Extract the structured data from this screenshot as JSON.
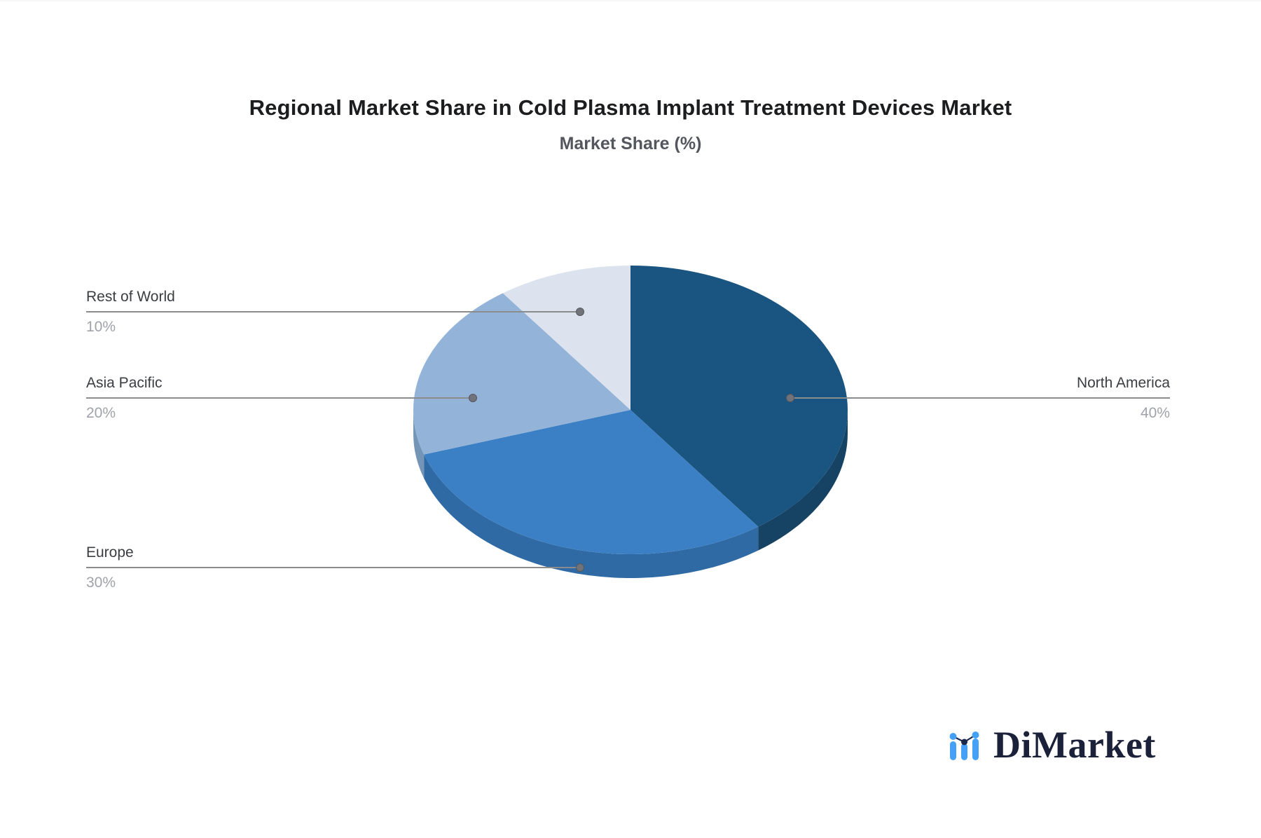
{
  "header": {
    "title": "Regional Market Share in Cold Plasma Implant Treatment Devices Market",
    "subtitle": "Market Share (%)"
  },
  "chart_data": {
    "type": "pie",
    "title": "Regional Market Share in Cold Plasma Implant Treatment Devices Market",
    "subtitle": "Market Share (%)",
    "unit": "%",
    "style": "3d-pie",
    "start_angle": "12-oclock",
    "direction": "clockwise",
    "legend_position": "callout-labels",
    "slices": [
      {
        "name": "North America",
        "value": 40,
        "pct_label": "40%",
        "color": "#1a5480",
        "side_color": "#164263",
        "label_side": "right"
      },
      {
        "name": "Europe",
        "value": 30,
        "pct_label": "30%",
        "color": "#3b80c4",
        "side_color": "#2f6aa4",
        "label_side": "left"
      },
      {
        "name": "Asia Pacific",
        "value": 20,
        "pct_label": "20%",
        "color": "#93b4d8",
        "side_color": "#7495b5",
        "label_side": "left"
      },
      {
        "name": "Rest of World",
        "value": 10,
        "pct_label": "10%",
        "color": "#dce3ee",
        "side_color": "#b9c5d8",
        "label_side": "left"
      }
    ]
  },
  "logo": {
    "text": "DiMarket",
    "icon": "bar-line-chart-icon",
    "colors": {
      "blue": "#45a1f8",
      "navy": "#1b2a4a",
      "text": "#1a2138"
    }
  }
}
